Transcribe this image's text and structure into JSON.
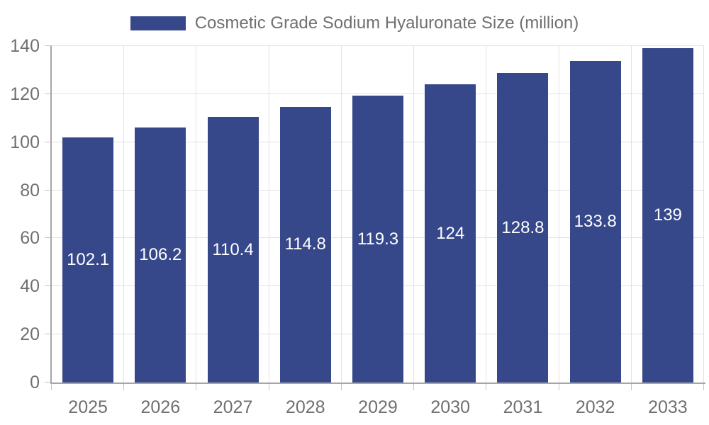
{
  "legend": {
    "label": "Cosmetic Grade Sodium Hyaluronate Size (million)"
  },
  "colors": {
    "bar": "#36488A",
    "bar_label": "#ffffff",
    "axis_text": "#707070",
    "axis_line": "#a6a6a6",
    "gridline": "#e2e2e2",
    "tick_mark": "#c4c4c4",
    "background": "#ffffff"
  },
  "chart_data": {
    "type": "bar",
    "title": "Cosmetic Grade Sodium Hyaluronate Size (million)",
    "categories": [
      "2025",
      "2026",
      "2027",
      "2028",
      "2029",
      "2030",
      "2031",
      "2032",
      "2033"
    ],
    "values": [
      102.1,
      106.2,
      110.4,
      114.8,
      119.3,
      124,
      128.8,
      133.8,
      139
    ],
    "value_labels": [
      "102.1",
      "106.2",
      "110.4",
      "114.8",
      "119.3",
      "124",
      "128.8",
      "133.8",
      "139"
    ],
    "xlabel": "",
    "ylabel": "",
    "ylim": [
      0,
      140
    ],
    "yticks": [
      0,
      20,
      40,
      60,
      80,
      100,
      120,
      140
    ],
    "grid": true,
    "legend_position": "top",
    "series_name": "Cosmetic Grade Sodium Hyaluronate Size (million)"
  }
}
